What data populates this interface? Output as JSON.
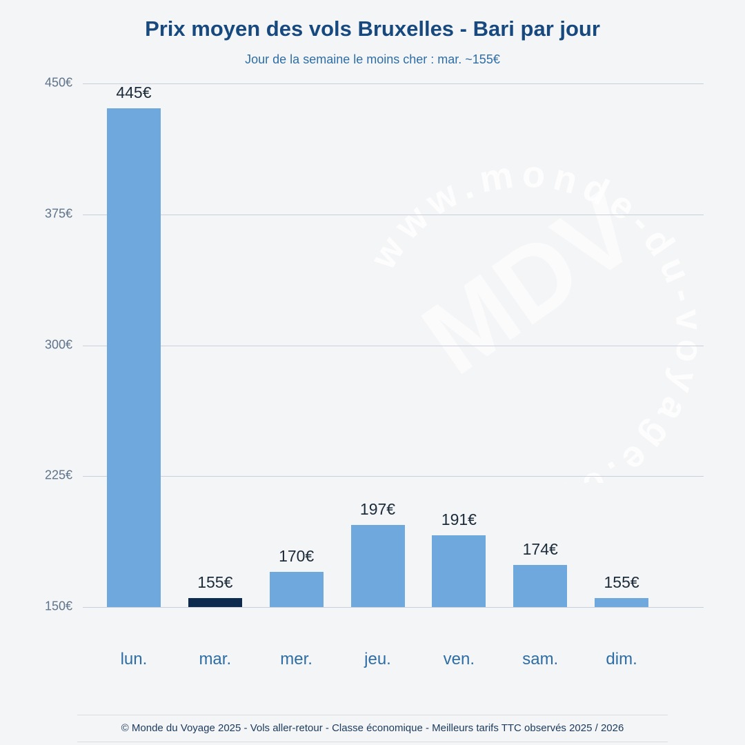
{
  "page": {
    "background": "#f4f5f7"
  },
  "header": {
    "title": "Prix moyen des vols Bruxelles - Bari par jour",
    "subtitle": "Jour de la semaine le moins cher : mar. ~155€"
  },
  "watermark": {
    "circle_text": "www.monde-du-voyage.com",
    "center_text": "MDV"
  },
  "footer": {
    "text": "© Monde du Voyage 2025 - Vols aller-retour - Classe économique - Meilleurs tarifs TTC observés 2025 / 2026"
  },
  "chart_data": {
    "type": "bar",
    "title": "Prix moyen des vols Bruxelles - Bari par jour",
    "subtitle": "Jour de la semaine le moins cher : mar. ~155€",
    "categories": [
      "lun.",
      "mar.",
      "mer.",
      "jeu.",
      "ven.",
      "sam.",
      "dim."
    ],
    "values": [
      445,
      155,
      170,
      197,
      191,
      174,
      155
    ],
    "value_labels": [
      "445€",
      "155€",
      "170€",
      "197€",
      "191€",
      "174€",
      "155€"
    ],
    "ylim": [
      150,
      450
    ],
    "yticks": [
      450,
      375,
      300,
      225,
      150
    ],
    "ytick_labels": [
      "450€",
      "375€",
      "300€",
      "225€",
      "150€"
    ],
    "highlight_index": 1,
    "bar_color": "#6fa8dc",
    "highlight_color": "#0d2b4e",
    "grid": true,
    "legend": false,
    "xlabel": "",
    "ylabel": ""
  }
}
